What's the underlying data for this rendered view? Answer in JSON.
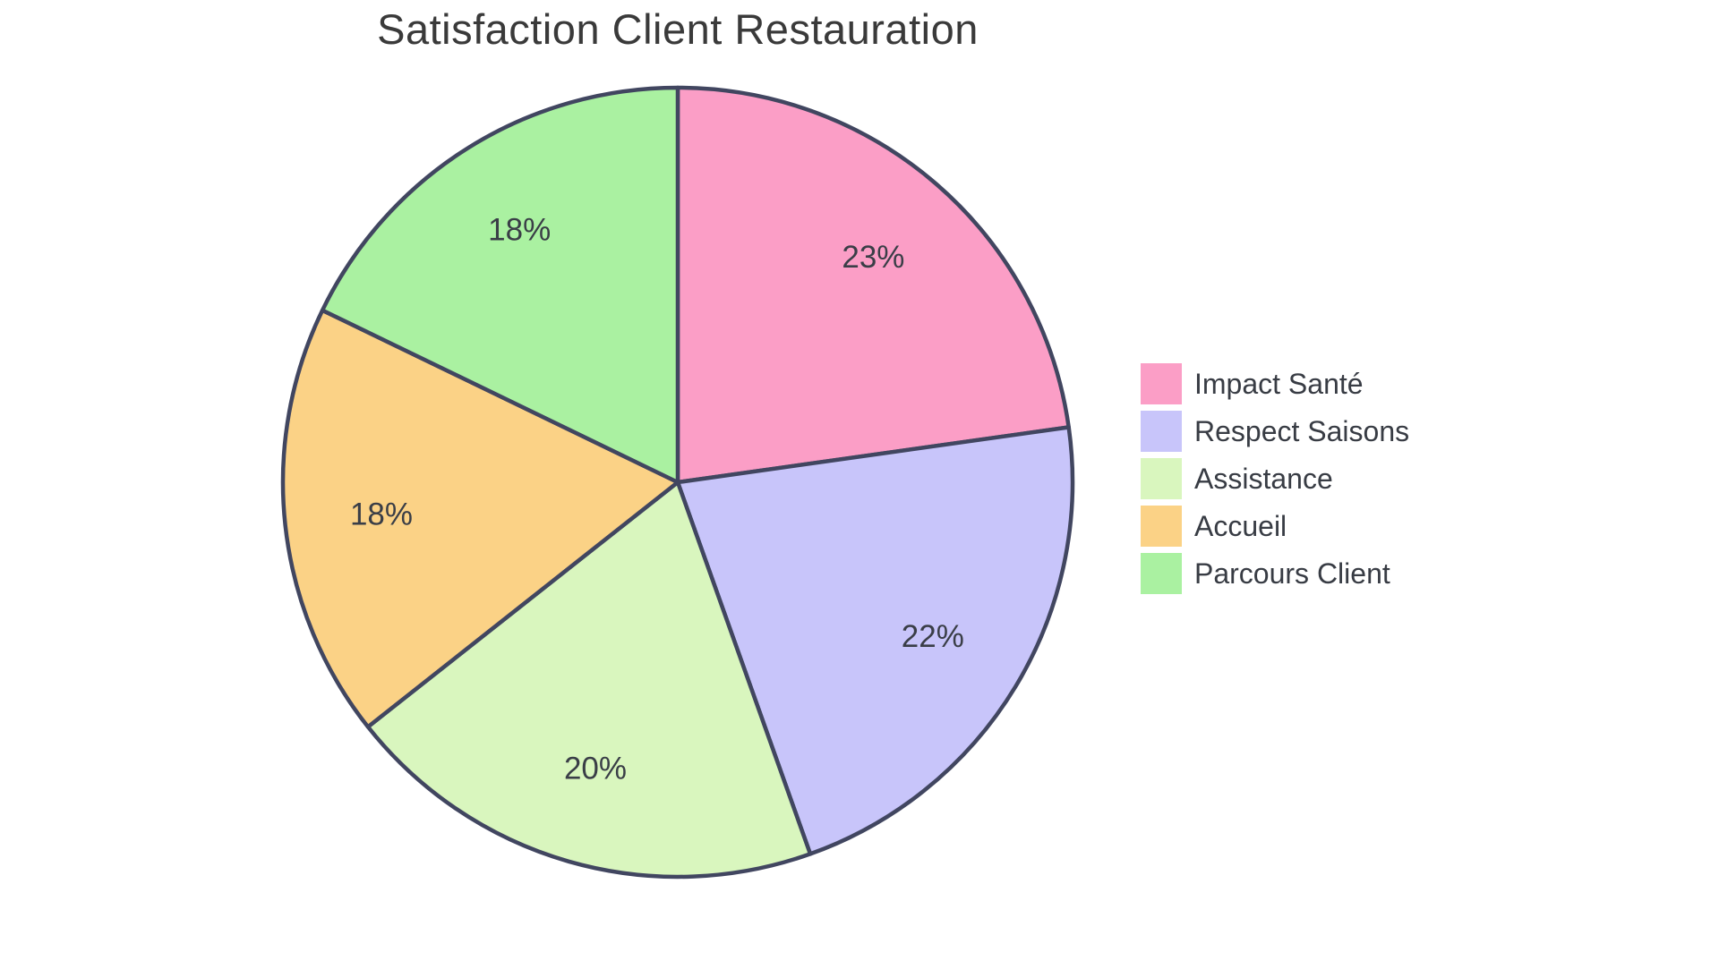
{
  "chart_data": {
    "type": "pie",
    "title": "Satisfaction Client Restauration",
    "slices": [
      {
        "label": "Impact Santé",
        "value": 23,
        "percent_label": "23%",
        "color": "#FB9EC6"
      },
      {
        "label": "Respect Saisons",
        "value": 22,
        "percent_label": "22%",
        "color": "#C8C5FA"
      },
      {
        "label": "Assistance",
        "value": 20,
        "percent_label": "20%",
        "color": "#D9F6BE"
      },
      {
        "label": "Accueil",
        "value": 18,
        "percent_label": "18%",
        "color": "#FBD286"
      },
      {
        "label": "Parcours Client",
        "value": 18,
        "percent_label": "18%",
        "color": "#AAF1A1"
      }
    ],
    "start_angle": "12-oclock",
    "direction": "clockwise",
    "stroke_color": "#414660",
    "stroke_width": 4.5,
    "label_radius_fraction": 0.755,
    "label_color": "#3a3e47",
    "legend_position": "right-center",
    "background": "#FFFFFF"
  }
}
